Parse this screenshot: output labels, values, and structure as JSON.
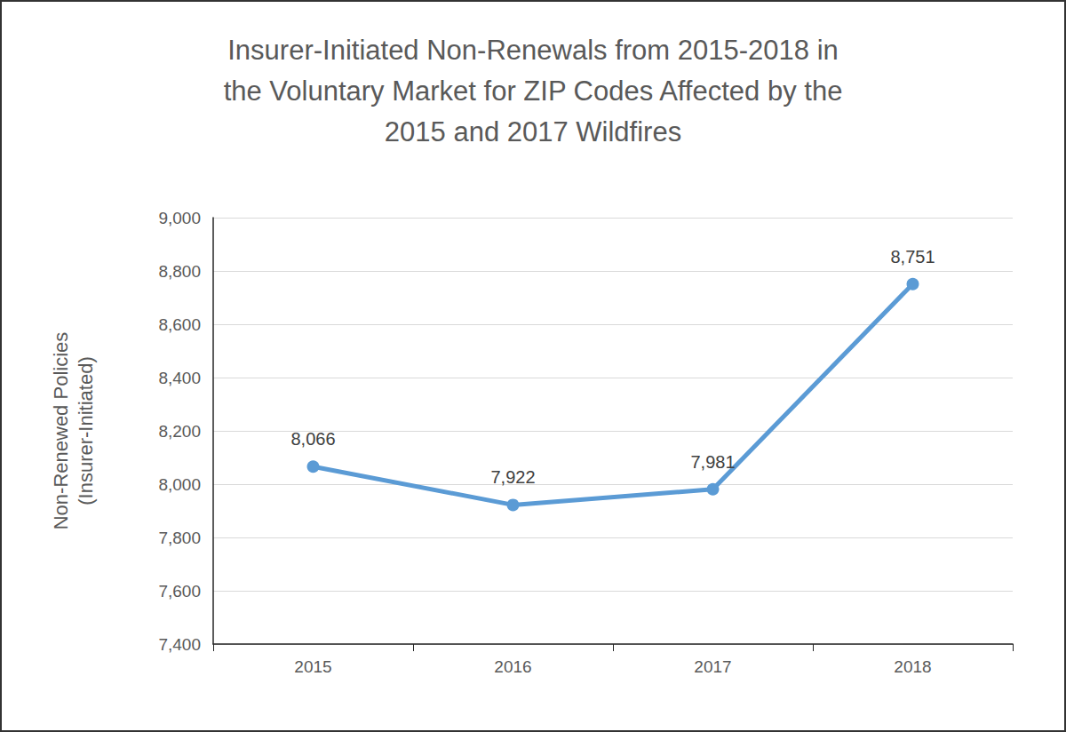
{
  "chart_data": {
    "type": "line",
    "title": "Insurer-Initiated Non-Renewals from 2015-2018 in\nthe Voluntary Market for ZIP Codes Affected by the\n2015 and 2017 Wildfires",
    "y_label": "Non-Renewed Policies\n(Insurer-Initiated)",
    "categories": [
      "2015",
      "2016",
      "2017",
      "2018"
    ],
    "values": [
      8066,
      7922,
      7981,
      8751
    ],
    "value_labels": [
      "8,066",
      "7,922",
      "7,981",
      "8,751"
    ],
    "data_labels": true,
    "color": "#5b9bd5",
    "marker": "circle",
    "line_style": "solid",
    "ylim": [
      7400,
      9000
    ],
    "yticks": [
      {
        "value": 7400,
        "label": "7,400"
      },
      {
        "value": 7600,
        "label": "7,600"
      },
      {
        "value": 7800,
        "label": "7,800"
      },
      {
        "value": 8000,
        "label": "8,000"
      },
      {
        "value": 8200,
        "label": "8,200"
      },
      {
        "value": 8400,
        "label": "8,400"
      },
      {
        "value": 8600,
        "label": "8,600"
      },
      {
        "value": 8800,
        "label": "8,800"
      },
      {
        "value": 9000,
        "label": "9,000"
      }
    ],
    "grid": true
  }
}
